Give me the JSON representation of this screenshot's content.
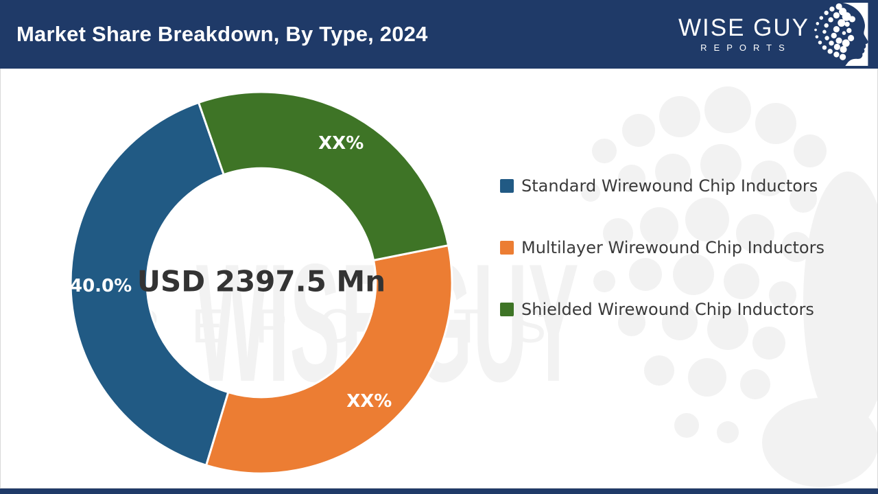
{
  "header": {
    "title": "Market Share Breakdown, By Type, 2024",
    "logo": {
      "line1": "WISE GUY",
      "line2": "REPORTS"
    }
  },
  "watermark": {
    "line1": "WISE GUY",
    "line2": "REPORTS"
  },
  "chart_data": {
    "type": "pie",
    "subtype": "donut",
    "title": "Market Share Breakdown, By Type, 2024",
    "center_label": "USD 2397.5 Mn",
    "hole_ratio": 0.6,
    "start_angle_deg": 109.2,
    "direction": "ccw",
    "legend_position": "right",
    "segments": [
      {
        "name": "Standard Wirewound Chip Inductors",
        "value_pct": 40.0,
        "label": "40.0%",
        "color": "#215a84"
      },
      {
        "name": "Multilayer Wirewound Chip Inductors",
        "value_pct": 32.8,
        "label": "XX%",
        "color": "#ec7d33"
      },
      {
        "name": "Shielded Wirewound Chip Inductors",
        "value_pct": 27.2,
        "label": "XX%",
        "color": "#3e7426"
      }
    ]
  },
  "colors": {
    "header_bg": "#1f3a68",
    "footer_bg": "#1f3a68",
    "center_text": "#333333",
    "legend_text": "#3a3a3a",
    "watermark": "#f2f2f2",
    "border": "#d9d9d9"
  }
}
